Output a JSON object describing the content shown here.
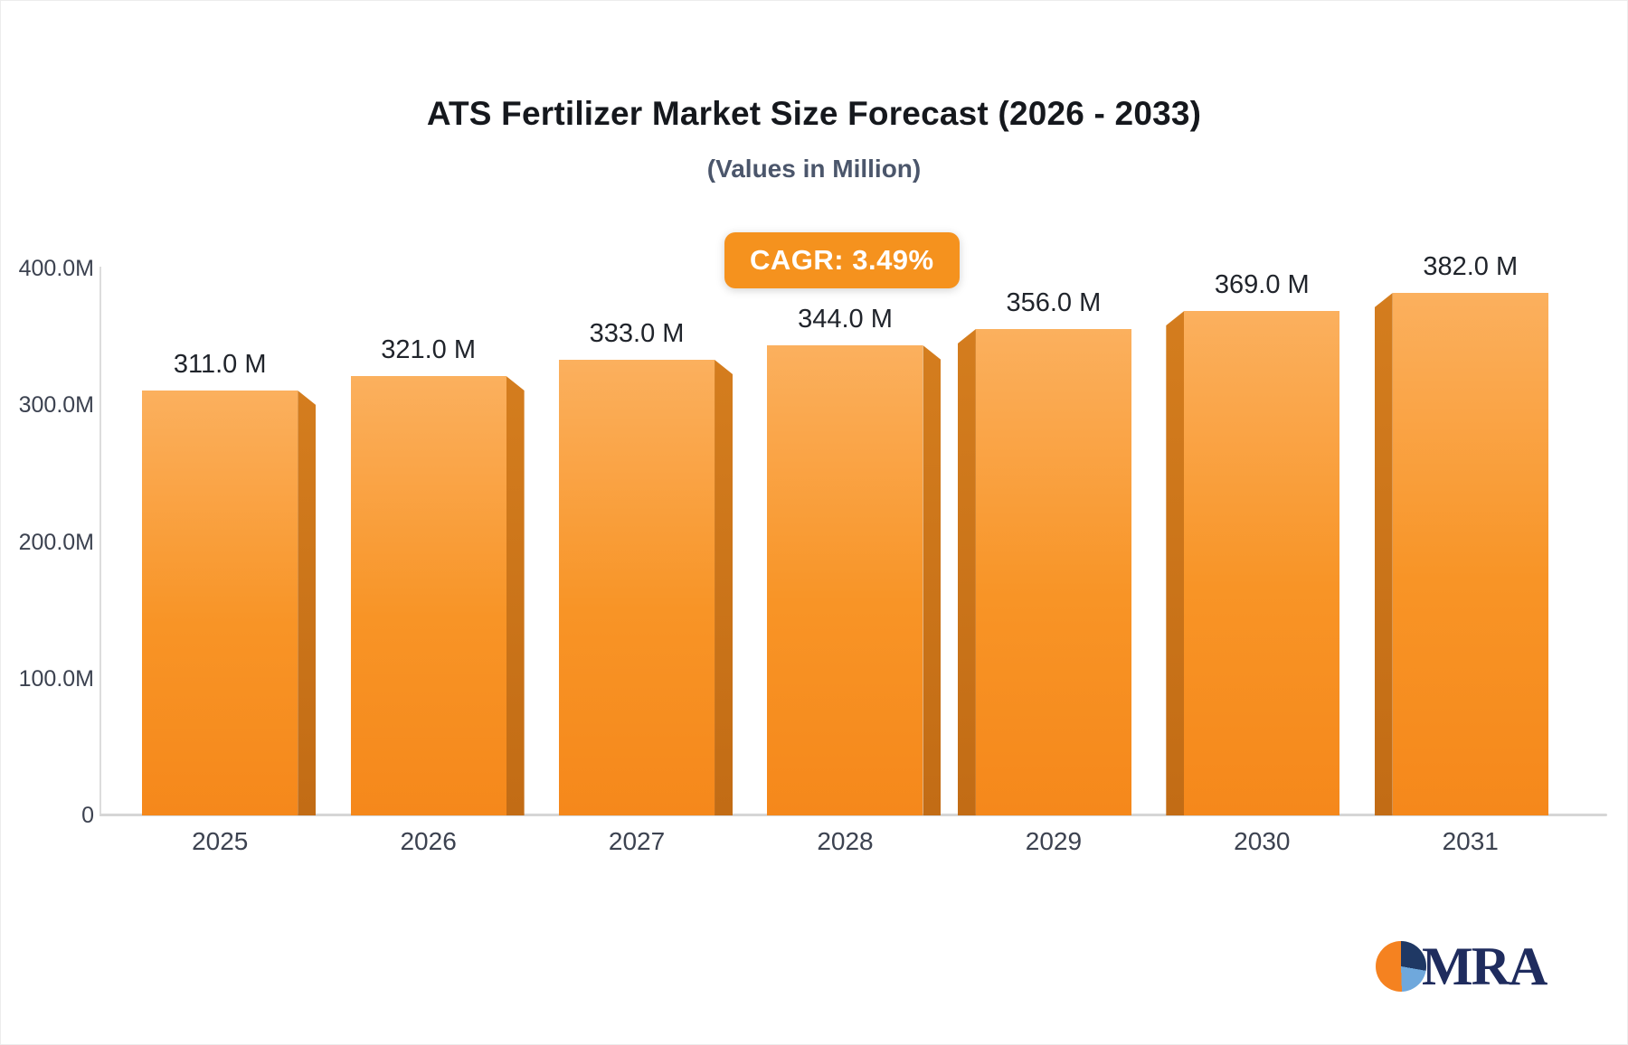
{
  "header": {
    "title": "ATS Fertilizer Market Size Forecast (2026 - 2033)",
    "subtitle": "(Values in Million)"
  },
  "badge": {
    "label": "CAGR: 3.49%",
    "background": "#F5921E",
    "text_color": "#FFFFFF"
  },
  "logo": {
    "text": "MRA",
    "pie_colors": [
      "#1F3864",
      "#6FA8DC",
      "#F58220"
    ],
    "text_color": "#1F2C5E"
  },
  "chart_data": {
    "type": "bar",
    "title": "ATS Fertilizer Market Size Forecast (2026 - 2033)",
    "subtitle": "(Values in Million)",
    "categories": [
      "2025",
      "2026",
      "2027",
      "2028",
      "2029",
      "2030",
      "2031"
    ],
    "values": [
      311.0,
      321.0,
      333.0,
      344.0,
      356.0,
      369.0,
      382.0
    ],
    "value_labels": [
      "311.0 M",
      "321.0 M",
      "333.0 M",
      "344.0 M",
      "356.0 M",
      "369.0 M",
      "382.0 M"
    ],
    "xlabel": "",
    "ylabel": "",
    "ylim": [
      0,
      400
    ],
    "ytick_values": [
      400,
      300,
      200,
      100,
      0
    ],
    "ytick_labels": [
      "400.0M",
      "300.0M",
      "200.0M",
      "100.0M",
      "0"
    ],
    "grid": false,
    "legend": false,
    "annotation": "CAGR: 3.49%",
    "bar_colors": {
      "face_top": "#FBB05E",
      "face_bottom": "#F5881B",
      "side": "#C97118"
    }
  }
}
